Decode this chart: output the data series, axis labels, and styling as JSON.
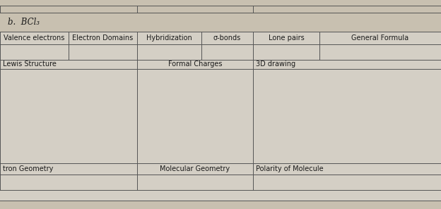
{
  "title": "b.  BCl₃",
  "bg_color": "#c8c0b0",
  "table_bg": "#d4cfc5",
  "line_color": "#555555",
  "text_color": "#1a1a1a",
  "header_labels": [
    "Valence electrons",
    "Electron Domains",
    "Hybridization",
    "σ-bonds",
    "Lone pairs",
    "General Formula"
  ],
  "mid_labels": [
    "Lewis Structure",
    "Formal Charges",
    "3D drawing"
  ],
  "bot_labels": [
    "tron Geometry",
    "Molecular Geometry",
    "Polarity of Molecule"
  ],
  "title_fontstyle": "italic",
  "title_fontsize": 8.5,
  "header_fontsize": 7.0,
  "label_fontsize": 7.0
}
